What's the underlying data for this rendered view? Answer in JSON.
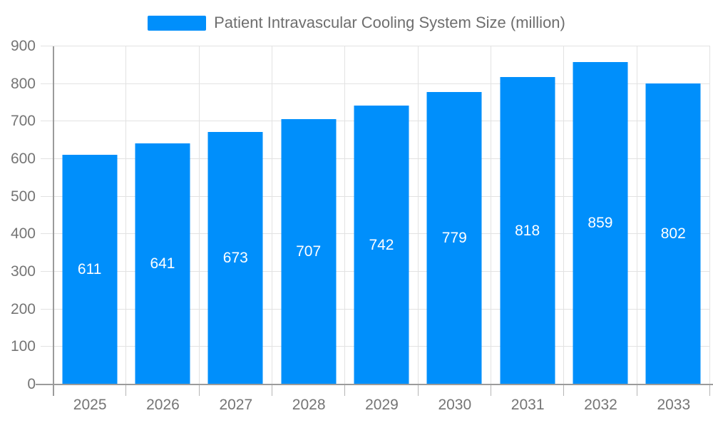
{
  "legend": {
    "label": "Patient Intravascular Cooling System Size (million)"
  },
  "chart_data": {
    "type": "bar",
    "title": "Patient Intravascular Cooling System Size (million)",
    "categories": [
      "2025",
      "2026",
      "2027",
      "2028",
      "2029",
      "2030",
      "2031",
      "2032",
      "2033"
    ],
    "values": [
      611,
      641,
      673,
      707,
      742,
      779,
      818,
      859,
      802
    ],
    "xlabel": "",
    "ylabel": "",
    "ylim": [
      0,
      900
    ],
    "ytick_step": 100,
    "grid": true,
    "legend_position": "top",
    "colors": {
      "bar": "#008FFB",
      "value_label": "#ffffff",
      "axis_label": "#757575",
      "legend_text": "#6e6e6e",
      "gridline": "#e2e2e2",
      "axis_line": "#9b9b9b"
    }
  }
}
